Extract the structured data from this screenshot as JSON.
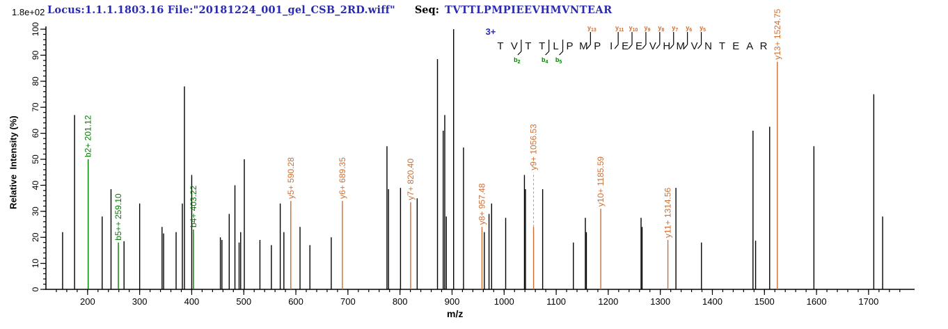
{
  "header": {
    "locus_file": "Locus:1.1.1.1803.16 File:\"20181224_001_gel_CSB_2RD.wiff\"",
    "seq_label": "Seq:",
    "seq_value": "TVTTLPMPIEEVHMVNTEAR"
  },
  "colors": {
    "header_blue": "#2B2BB0",
    "peak_black": "#000000",
    "b_ion_green": "#007B00",
    "y_ion_orange": "#CC6E33",
    "leader_gray": "#9a9a9a",
    "axis_black": "#000000"
  },
  "chart_data": {
    "type": "bar",
    "subtype": "ms2-peptide-fragmentation-spectrum",
    "title": "",
    "xlabel": "m/z",
    "ylabel": "Relative  Intensity (%)",
    "y_axis_scale_note": "1.8e+02",
    "xlim": [
      120,
      1775
    ],
    "ylim": [
      0,
      100
    ],
    "x_major_ticks": [
      200,
      300,
      400,
      500,
      600,
      700,
      800,
      900,
      1000,
      1100,
      1200,
      1300,
      1400,
      1500,
      1600,
      1700
    ],
    "x_minor_tick_step": 20,
    "y_major_ticks": [
      0,
      10,
      20,
      30,
      40,
      50,
      60,
      70,
      80,
      90,
      100
    ],
    "y_minor_tick_step": 2,
    "grid": "off",
    "legend": "none",
    "precursor_charge": "3+",
    "peptide_sequence": "TVTTLPMPIEEVHMVNTEAR",
    "sequence_annotation": {
      "b_ion_marks": [
        {
          "after_residue": 2,
          "label": "b2"
        },
        {
          "after_residue": 4,
          "label": "b4"
        },
        {
          "after_residue": 5,
          "label": "b5"
        }
      ],
      "y_ion_marks": [
        {
          "after_residue": 7,
          "label": "y13"
        },
        {
          "after_residue": 9,
          "label": "y11"
        },
        {
          "after_residue": 10,
          "label": "y10"
        },
        {
          "after_residue": 11,
          "label": "y9"
        },
        {
          "after_residue": 12,
          "label": "y8"
        },
        {
          "after_residue": 13,
          "label": "y7"
        },
        {
          "after_residue": 14,
          "label": "y6"
        },
        {
          "after_residue": 15,
          "label": "y5"
        }
      ]
    },
    "fragment_ions": [
      {
        "label": "b2+ 201.12",
        "series": "b",
        "mz": 201.12,
        "intensity_pct": 50
      },
      {
        "label": "b5++ 259.10",
        "series": "b",
        "mz": 259.1,
        "intensity_pct": 18
      },
      {
        "label": "b4+ 403.22",
        "series": "b",
        "mz": 403.22,
        "intensity_pct": 23
      },
      {
        "label": "y5+ 590.28",
        "series": "y",
        "mz": 590.28,
        "intensity_pct": 34
      },
      {
        "label": "y6+ 689.35",
        "series": "y",
        "mz": 689.35,
        "intensity_pct": 34
      },
      {
        "label": "y7+ 820.40",
        "series": "y",
        "mz": 820.4,
        "intensity_pct": 33.5
      },
      {
        "label": "y8+ 957.48",
        "series": "y",
        "mz": 957.48,
        "intensity_pct": 24
      },
      {
        "label": "y9+ 1056.53",
        "series": "y",
        "mz": 1056.53,
        "intensity_pct": 24,
        "leader_line_to_pct": 45
      },
      {
        "label": "y10+ 1185.59",
        "series": "y",
        "mz": 1185.59,
        "intensity_pct": 31
      },
      {
        "label": "y11+ 1314.56",
        "series": "y",
        "mz": 1314.56,
        "intensity_pct": 19
      },
      {
        "label": "y13+ 1524.75",
        "series": "y",
        "mz": 1524.75,
        "intensity_pct": 87.5
      }
    ],
    "unlabeled_peaks": [
      [
        152,
        22
      ],
      [
        175,
        67
      ],
      [
        228,
        28
      ],
      [
        245,
        38.5
      ],
      [
        270,
        18.5
      ],
      [
        300,
        33
      ],
      [
        343,
        24
      ],
      [
        346,
        21.5
      ],
      [
        370,
        22
      ],
      [
        382,
        33
      ],
      [
        386,
        78
      ],
      [
        400,
        44
      ],
      [
        455,
        20
      ],
      [
        458,
        19
      ],
      [
        472,
        29
      ],
      [
        483,
        40
      ],
      [
        491,
        18
      ],
      [
        494,
        22
      ],
      [
        501,
        50
      ],
      [
        531,
        19
      ],
      [
        553,
        17
      ],
      [
        570,
        33
      ],
      [
        577,
        22
      ],
      [
        608,
        24
      ],
      [
        627,
        17
      ],
      [
        668,
        20
      ],
      [
        775,
        55
      ],
      [
        778,
        38.5
      ],
      [
        801,
        39
      ],
      [
        833,
        35
      ],
      [
        872,
        88.5
      ],
      [
        883,
        61
      ],
      [
        886,
        67
      ],
      [
        889,
        28
      ],
      [
        903,
        100
      ],
      [
        922,
        54.5
      ],
      [
        962,
        22
      ],
      [
        971,
        29
      ],
      [
        976,
        33
      ],
      [
        1003,
        27.5
      ],
      [
        1039,
        44
      ],
      [
        1041,
        38.5
      ],
      [
        1074,
        38.5
      ],
      [
        1133,
        18
      ],
      [
        1156,
        27.5
      ],
      [
        1158,
        22
      ],
      [
        1263,
        27.5
      ],
      [
        1265,
        24
      ],
      [
        1330,
        39
      ],
      [
        1379,
        18
      ],
      [
        1478,
        61
      ],
      [
        1483,
        18.7
      ],
      [
        1510,
        62.5
      ],
      [
        1595,
        55
      ],
      [
        1710,
        75
      ],
      [
        1727,
        28
      ]
    ]
  }
}
